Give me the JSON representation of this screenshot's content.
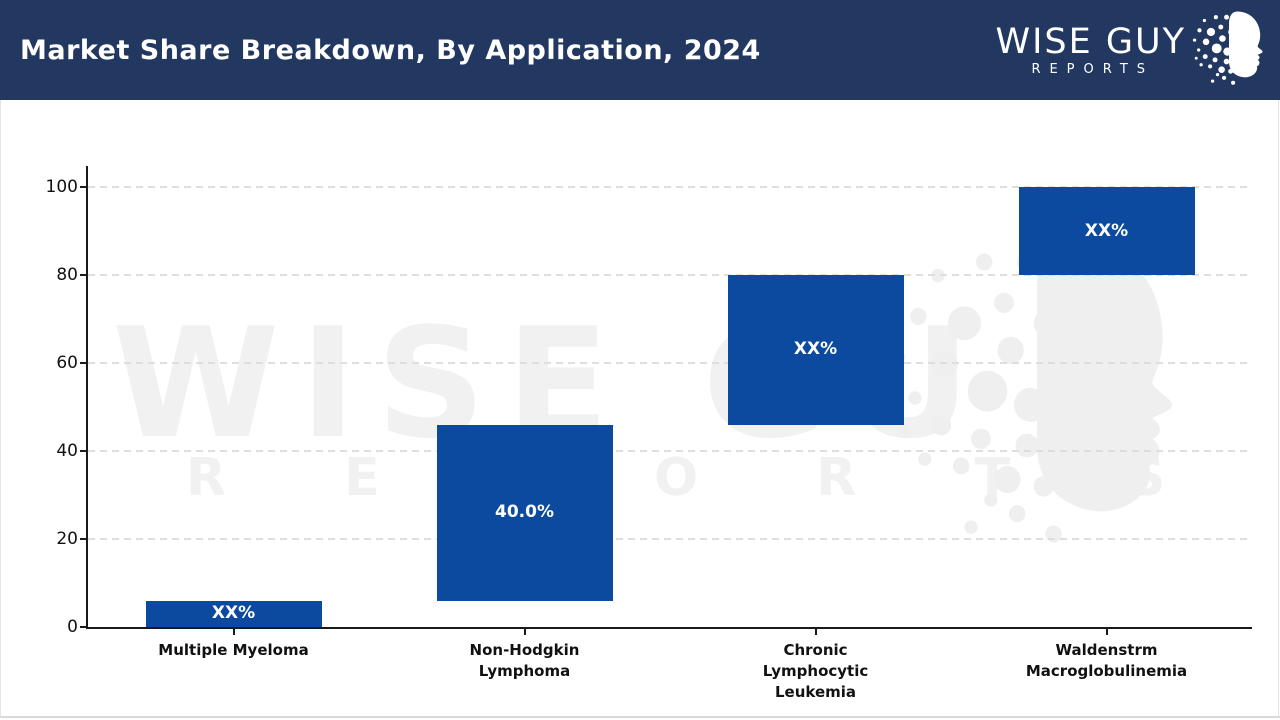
{
  "header": {
    "title": "Market Share Breakdown, By Application, 2024",
    "logo": {
      "line1": "WISE GUY",
      "line2": "REPORTS"
    }
  },
  "watermark": {
    "line1": "WISE GU",
    "line2": "R E P O R T S"
  },
  "chart_data": {
    "type": "bar",
    "subtype": "floating-waterfall",
    "title": "Market Share Breakdown, By Application, 2024",
    "categories": [
      "Multiple Myeloma",
      "Non-Hodgkin Lymphoma",
      "Chronic Lymphocytic Leukemia",
      "Waldenstrm Macroglobulinemia"
    ],
    "category_label_lines": [
      [
        "Multiple Myeloma"
      ],
      [
        "Non-Hodgkin",
        "Lymphoma"
      ],
      [
        "Chronic",
        "Lymphocytic",
        "Leukemia"
      ],
      [
        "Waldenstrm",
        "Macroglobulinemia"
      ]
    ],
    "segments": [
      {
        "category": "Multiple Myeloma",
        "start": 0,
        "end": 6,
        "value": 6,
        "value_label": "XX%"
      },
      {
        "category": "Non-Hodgkin Lymphoma",
        "start": 6,
        "end": 46,
        "value": 40.0,
        "value_label": "40.0%"
      },
      {
        "category": "Chronic Lymphocytic Leukemia",
        "start": 46,
        "end": 80,
        "value": 34,
        "value_label": "XX%"
      },
      {
        "category": "Waldenstrm Macroglobulinemia",
        "start": 80,
        "end": 100,
        "value": 20,
        "value_label": "XX%"
      }
    ],
    "ylabel": "",
    "xlabel": "",
    "yticks": [
      0,
      20,
      40,
      60,
      80,
      100
    ],
    "ylim": [
      0,
      105
    ],
    "grid": {
      "horizontal": true,
      "style": "dashed",
      "color": "#dedede"
    },
    "legend": "none",
    "bar_color": "#0b4a9f",
    "bar_label_color": "#ffffff",
    "axis_color": "#1a1a1a",
    "header_color": "#223861"
  }
}
